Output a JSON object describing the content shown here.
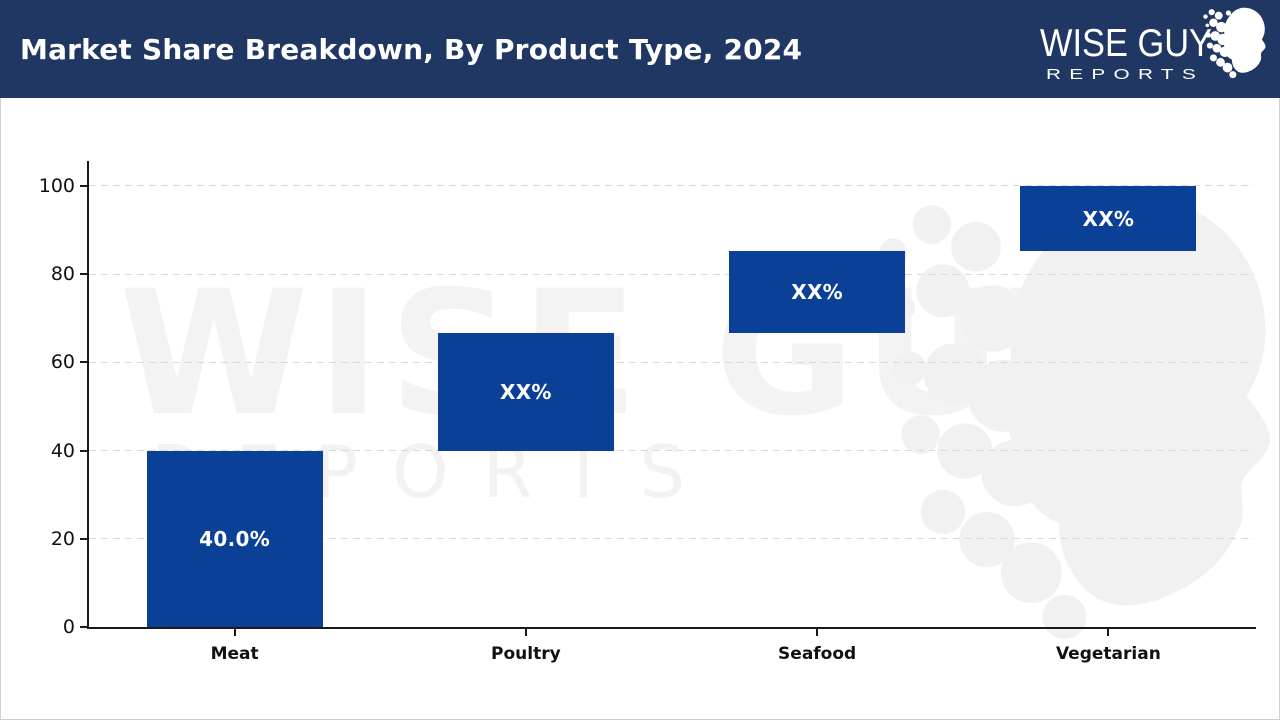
{
  "header": {
    "title": "Market Share Breakdown, By Product Type, 2024"
  },
  "logo": {
    "wordmark": "WISE GUY",
    "reports": "REPORTS"
  },
  "watermark": {
    "line1": "WISE GUY",
    "line2": "REPORTS"
  },
  "chart_data": {
    "type": "bar",
    "subtype": "waterfall",
    "title": "Market Share Breakdown, By Product Type, 2024",
    "categories": [
      "Meat",
      "Poultry",
      "Seafood",
      "Vegetarian"
    ],
    "values": [
      40.0,
      26.7,
      18.5,
      14.8
    ],
    "cumulative_start": [
      0,
      40.0,
      66.7,
      85.2
    ],
    "cumulative_end": [
      40.0,
      66.7,
      85.2,
      100.0
    ],
    "bar_labels": [
      "40.0%",
      "XX%",
      "XX%",
      "XX%"
    ],
    "xlabel": "",
    "ylabel": "",
    "yticks": [
      0,
      20,
      40,
      60,
      80,
      100
    ],
    "ylim": [
      0,
      105.2
    ],
    "grid": "horizontal-dashed",
    "legend": "none",
    "colors": {
      "bar": "#0a4197",
      "bar_label": "#ffffff",
      "header_bg": "#203763",
      "gridline": "#d9d9d9",
      "axis": "#1a1a1a"
    }
  }
}
